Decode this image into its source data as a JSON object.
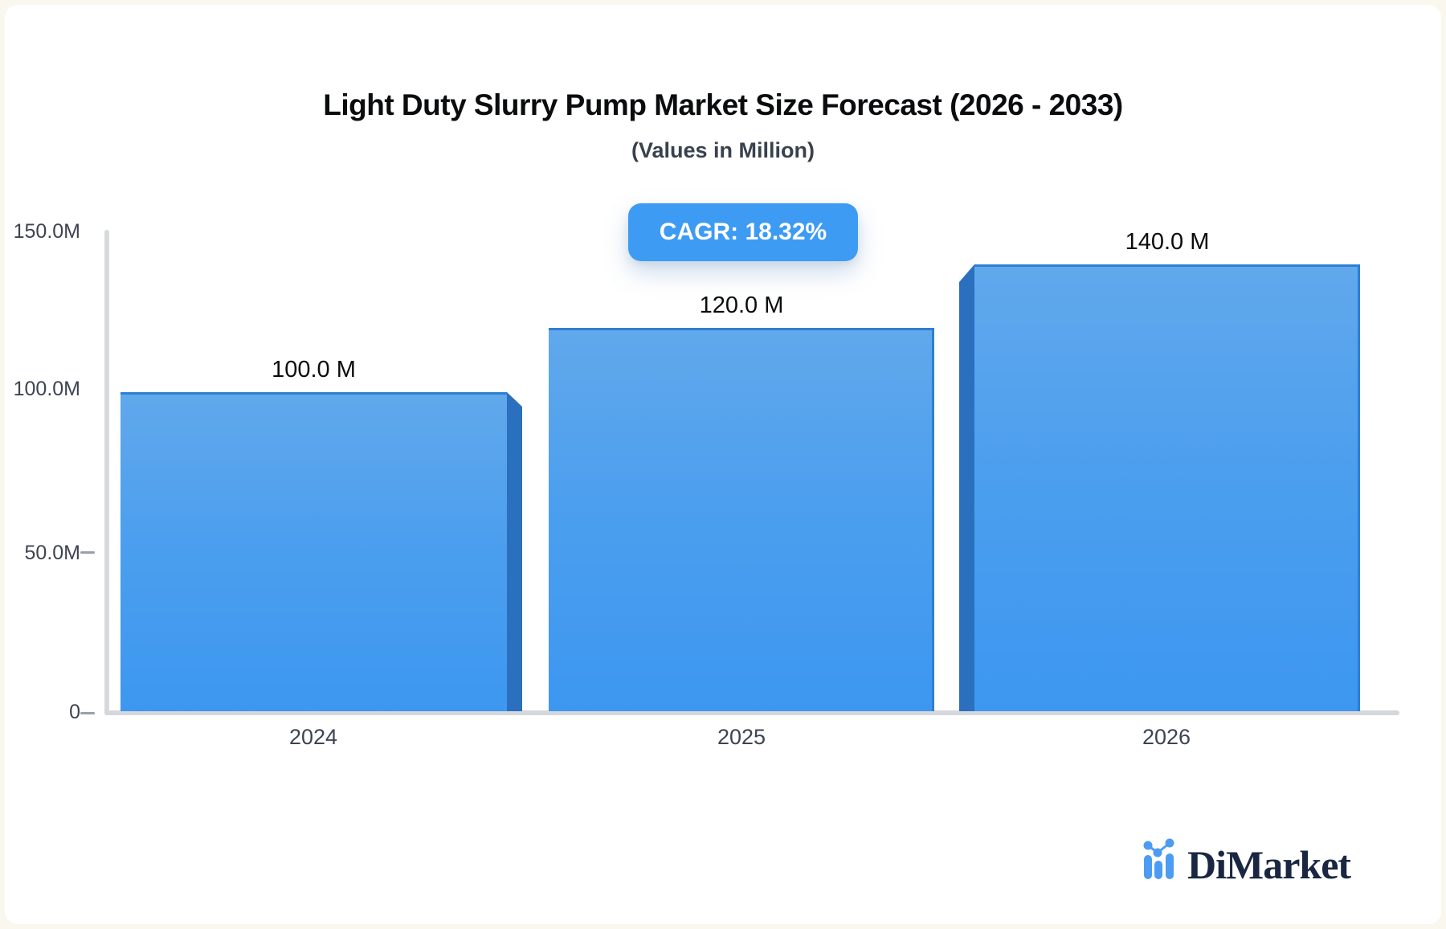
{
  "header": {
    "title": "Light Duty Slurry Pump Market Size Forecast (2026 - 2033)",
    "subtitle": "(Values in Million)"
  },
  "badge": {
    "label": "CAGR: 18.32%",
    "background": "#3D9BF3",
    "text_color": "#FFFFFF"
  },
  "chart_data": {
    "type": "bar",
    "title": "Light Duty Slurry Pump Market Size Forecast (2026 - 2033)",
    "subtitle": "(Values in Million)",
    "unit": "Million",
    "categories": [
      "2024",
      "2025",
      "2026"
    ],
    "values": [
      100,
      120,
      140
    ],
    "value_labels": [
      "100.0 M",
      "120.0 M",
      "140.0 M"
    ],
    "cagr": "18.32%",
    "xlabel": "",
    "ylabel": "",
    "ylim": [
      0,
      150
    ],
    "y_ticks": [
      "150.0M",
      "100.0M",
      "50.0M",
      "0"
    ],
    "grid": false,
    "legend": false,
    "bar_color_top": "#61A8EC",
    "bar_color_bottom": "#3D97F0",
    "bar_edge_color": "#2E7FD3",
    "bar_side_color": "#2B70BE"
  },
  "footer": {
    "brand": "DiMarket",
    "brand_color": "#1A2742",
    "icon_color": "#4B9CF2"
  }
}
